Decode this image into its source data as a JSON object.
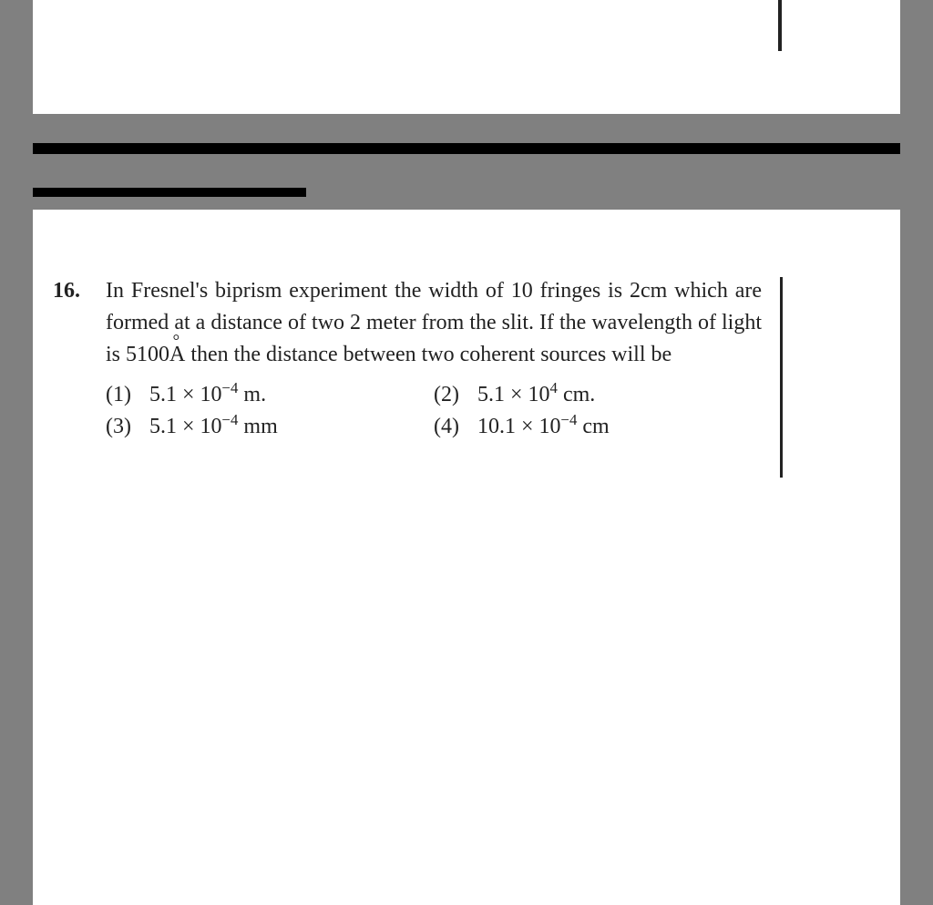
{
  "question": {
    "number": "16.",
    "stem_parts": {
      "p1": "In Fresnel's biprism experiment the width of 10 fringes is 2cm which are formed at a distance of two 2 meter from the slit. If the wavelength of light is 5100",
      "unit": "A",
      "p2": " then the distance between two coherent sources will be"
    },
    "choices": [
      {
        "num": "(1)",
        "coef": "5.1 × 10",
        "exp": "−4",
        "unit": " m."
      },
      {
        "num": "(2)",
        "coef": "5.1 × 10",
        "exp": "4",
        "unit": " cm."
      },
      {
        "num": "(3)",
        "coef": "5.1 × 10",
        "exp": "−4",
        "unit": " mm"
      },
      {
        "num": "(4)",
        "coef": "10.1 × 10",
        "exp": "−4",
        "unit": " cm"
      }
    ]
  },
  "colors": {
    "page_bg": "#808080",
    "paper_bg": "#ffffff",
    "rule": "#000000",
    "text": "#222222"
  }
}
